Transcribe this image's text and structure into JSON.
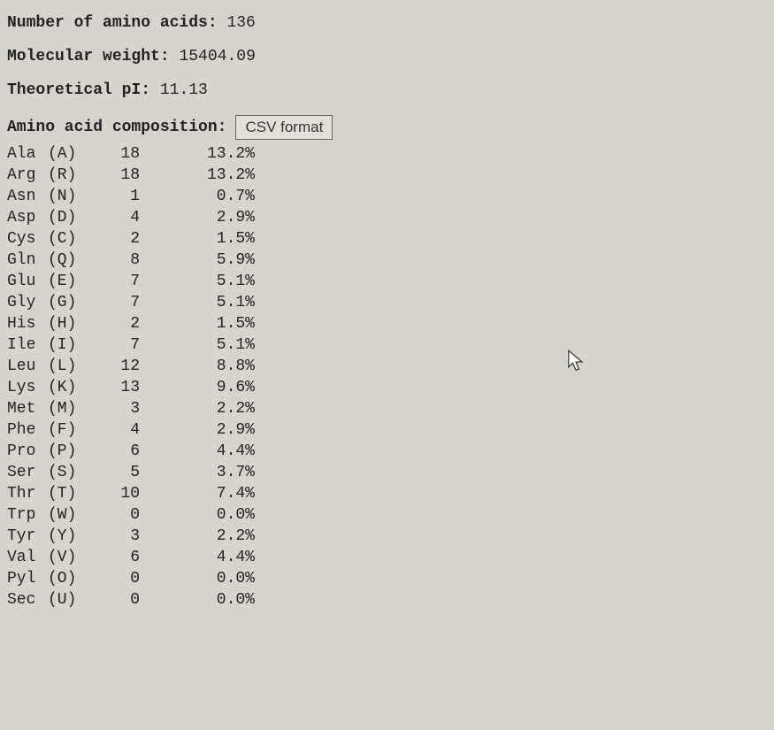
{
  "stats": {
    "num_aa_label": "Number of amino acids:",
    "num_aa_value": "136",
    "mw_label": "Molecular weight:",
    "mw_value": "15404.09",
    "pi_label": "Theoretical pI:",
    "pi_value": "11.13"
  },
  "composition": {
    "header_label": "Amino acid composition:",
    "csv_button": "CSV format",
    "rows": [
      {
        "name": "Ala",
        "code": "(A)",
        "count": "18",
        "pct": "13.2%"
      },
      {
        "name": "Arg",
        "code": "(R)",
        "count": "18",
        "pct": "13.2%"
      },
      {
        "name": "Asn",
        "code": "(N)",
        "count": "1",
        "pct": "0.7%"
      },
      {
        "name": "Asp",
        "code": "(D)",
        "count": "4",
        "pct": "2.9%"
      },
      {
        "name": "Cys",
        "code": "(C)",
        "count": "2",
        "pct": "1.5%"
      },
      {
        "name": "Gln",
        "code": "(Q)",
        "count": "8",
        "pct": "5.9%"
      },
      {
        "name": "Glu",
        "code": "(E)",
        "count": "7",
        "pct": "5.1%"
      },
      {
        "name": "Gly",
        "code": "(G)",
        "count": "7",
        "pct": "5.1%"
      },
      {
        "name": "His",
        "code": "(H)",
        "count": "2",
        "pct": "1.5%"
      },
      {
        "name": "Ile",
        "code": "(I)",
        "count": "7",
        "pct": "5.1%"
      },
      {
        "name": "Leu",
        "code": "(L)",
        "count": "12",
        "pct": "8.8%"
      },
      {
        "name": "Lys",
        "code": "(K)",
        "count": "13",
        "pct": "9.6%"
      },
      {
        "name": "Met",
        "code": "(M)",
        "count": "3",
        "pct": "2.2%"
      },
      {
        "name": "Phe",
        "code": "(F)",
        "count": "4",
        "pct": "2.9%"
      },
      {
        "name": "Pro",
        "code": "(P)",
        "count": "6",
        "pct": "4.4%"
      },
      {
        "name": "Ser",
        "code": "(S)",
        "count": "5",
        "pct": "3.7%"
      },
      {
        "name": "Thr",
        "code": "(T)",
        "count": "10",
        "pct": "7.4%"
      },
      {
        "name": "Trp",
        "code": "(W)",
        "count": "0",
        "pct": "0.0%"
      },
      {
        "name": "Tyr",
        "code": "(Y)",
        "count": "3",
        "pct": "2.2%"
      },
      {
        "name": "Val",
        "code": "(V)",
        "count": "6",
        "pct": "4.4%"
      },
      {
        "name": "Pyl",
        "code": "(O)",
        "count": "0",
        "pct": "0.0%"
      },
      {
        "name": "Sec",
        "code": "(U)",
        "count": "0",
        "pct": "0.0%"
      }
    ]
  }
}
